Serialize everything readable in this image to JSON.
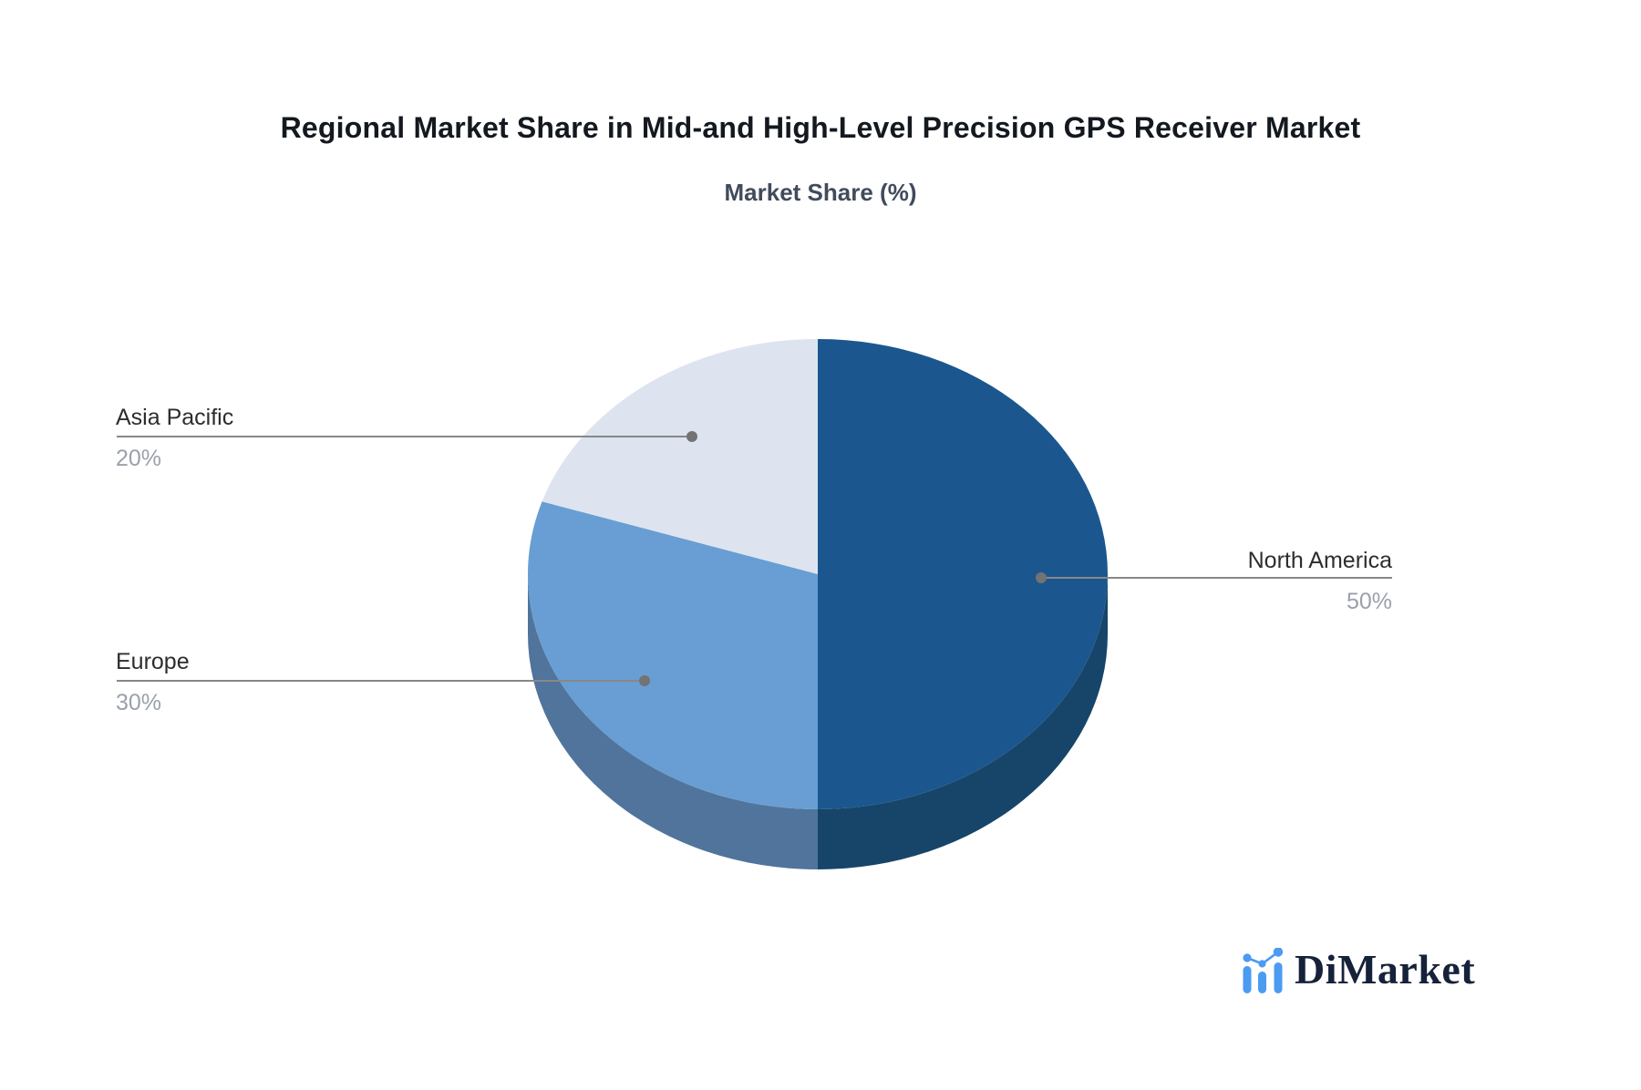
{
  "header": {
    "title": "Regional Market Share in Mid-and High-Level Precision GPS Receiver Market",
    "subtitle": "Market Share (%)"
  },
  "chart_data": {
    "type": "pie",
    "style": "3d",
    "title": "Regional Market Share in Mid-and High-Level Precision GPS Receiver Market",
    "subtitle": "Market Share (%)",
    "unit": "%",
    "start_angle_deg": 0,
    "direction": "clockwise",
    "legend": "none",
    "slices": [
      {
        "label": "North America",
        "value": 50,
        "display_value": "50%",
        "color": "#1b578e",
        "side_color": "#164569",
        "callout_side": "right"
      },
      {
        "label": "Europe",
        "value": 30,
        "display_value": "30%",
        "color": "#689ed3",
        "side_color": "#50749b",
        "callout_side": "left"
      },
      {
        "label": "Asia Pacific",
        "value": 20,
        "display_value": "20%",
        "color": "#dde4ef",
        "side_color": "#b9c4d6",
        "callout_side": "left"
      }
    ],
    "callout_line_color": "#888888",
    "callout_dot_color": "#737373"
  },
  "branding": {
    "logo_text": "DiMarket",
    "logo_icon": "bar-chart-logo-icon",
    "logo_icon_color": "#4b9bf2",
    "logo_text_color": "#16223a"
  },
  "text_colors": {
    "title": "#14181f",
    "subtitle": "#414b5c",
    "callout_label": "#2d2d2d",
    "callout_value": "#9aa1ab"
  }
}
